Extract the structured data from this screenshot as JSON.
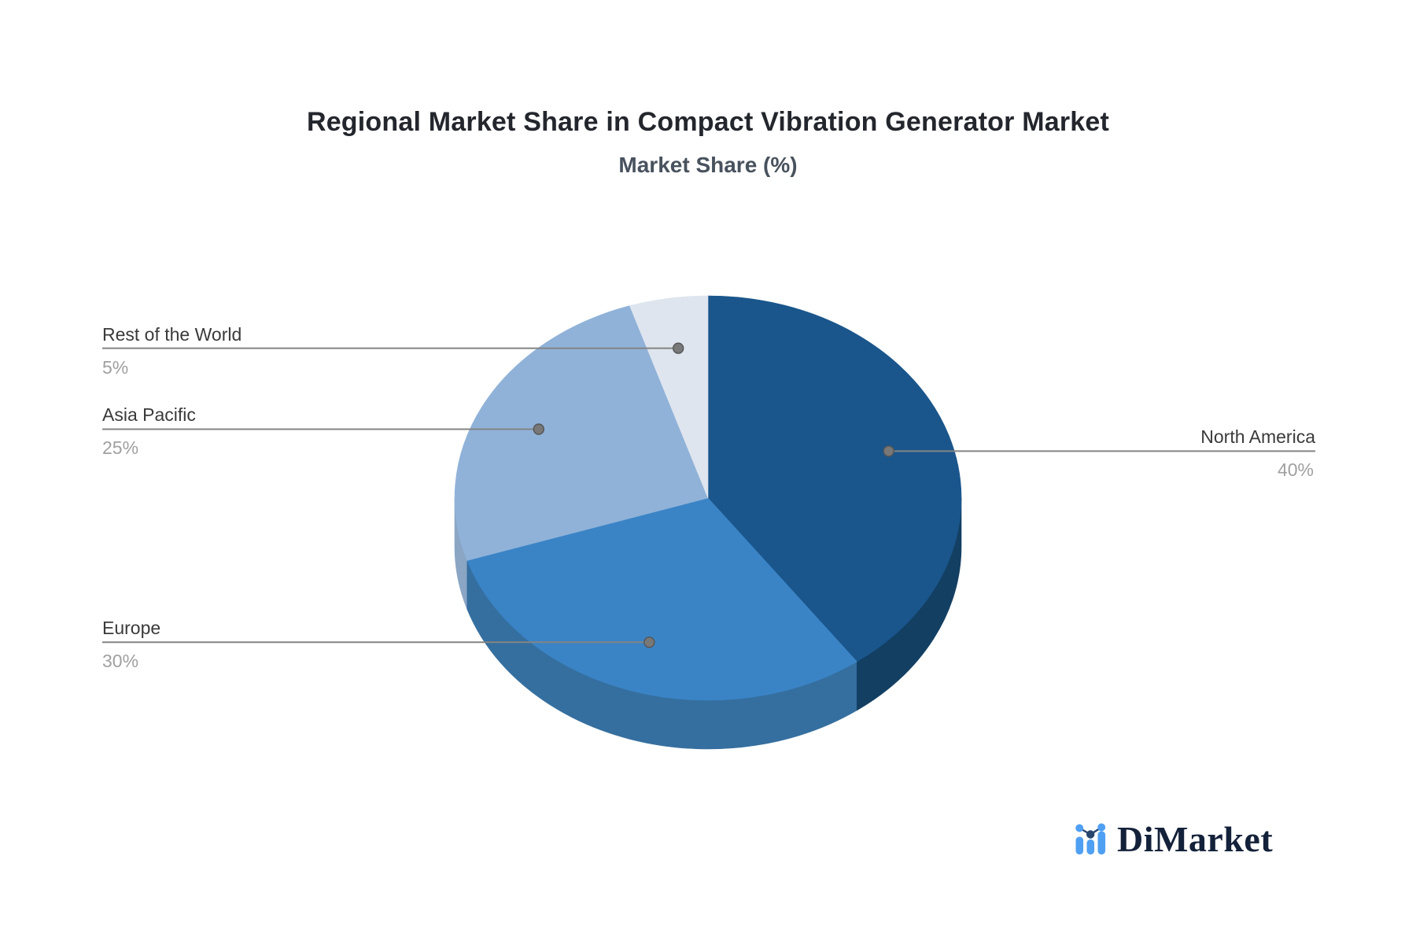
{
  "title": "Regional Market Share in Compact Vibration Generator Market",
  "subtitle": "Market Share (%)",
  "chart_data": {
    "type": "pie",
    "style": "3d-pie",
    "title": "Regional Market Share in Compact Vibration Generator Market",
    "subtitle": "Market Share (%)",
    "start_angle_deg": 0,
    "clockwise": true,
    "legend": "none",
    "slices": [
      {
        "label": "North America",
        "value": 40,
        "pct_label": "40%",
        "color": "#1A568C",
        "side_color": "#133F63",
        "label_side": "right"
      },
      {
        "label": "Europe",
        "value": 30,
        "pct_label": "30%",
        "color": "#3A84C6",
        "side_color": "#356F9F",
        "label_side": "left"
      },
      {
        "label": "Asia Pacific",
        "value": 25,
        "pct_label": "25%",
        "color": "#90B2D8",
        "side_color": "#8AA6C4",
        "label_side": "left"
      },
      {
        "label": "Rest of the World",
        "value": 5,
        "pct_label": "5%",
        "color": "#DEE5EF",
        "side_color": "#C9D4E3",
        "label_side": "left"
      }
    ]
  },
  "branding": {
    "logo_text": "DiMarket",
    "logo_icon": "bar-chart-logo-icon"
  },
  "colors": {
    "background": "#FFFFFF",
    "title_text": "#23262C",
    "subtitle_text": "#48525E",
    "callout_name_text": "#3A3A3A",
    "callout_pct_text": "#A0A0A0",
    "leader_line": "#848484",
    "leader_dot": "#787878",
    "logo_text": "#14213A",
    "logo_light_blue": "#4FA0F2",
    "logo_dark_blue": "#26466E"
  }
}
